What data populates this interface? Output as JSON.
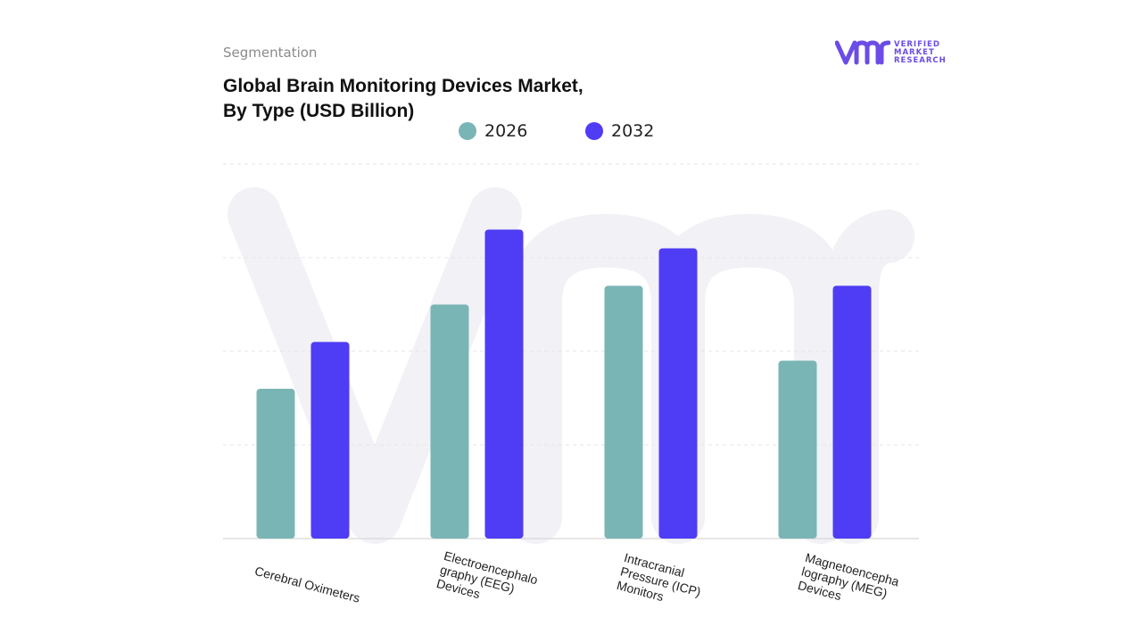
{
  "header": {
    "segment_label": "Segmentation",
    "title_line1": "Global Brain Monitoring Devices Market,",
    "title_line2": "By Type (USD Billion)"
  },
  "logo": {
    "line1": "VERIFIED",
    "line2": "MARKET",
    "line3": "RESEARCH",
    "color": "#6b4ce6"
  },
  "colors": {
    "series_2026": "#7ab5b6",
    "series_2032": "#4f3cf5",
    "grid": "#e6e6e6",
    "watermark": "#f1f1f6"
  },
  "chart_data": {
    "type": "bar",
    "title": "Global Brain Monitoring Devices Market, By Type (USD Billion)",
    "xlabel": "",
    "ylabel": "",
    "categories": [
      "Cerebral Oximeters",
      "Electroencephalo\ngraphy (EEG)\nDevices",
      "Intracranial\nPressure (ICP)\nMonitors",
      "Magnetoencepha\nlography (MEG)\nDevices"
    ],
    "series": [
      {
        "name": "2026",
        "values": [
          1.6,
          2.5,
          2.7,
          1.9
        ]
      },
      {
        "name": "2032",
        "values": [
          2.1,
          3.3,
          3.1,
          2.7
        ]
      }
    ],
    "ylim": [
      0,
      4
    ],
    "grid": true,
    "legend": "top-center"
  }
}
